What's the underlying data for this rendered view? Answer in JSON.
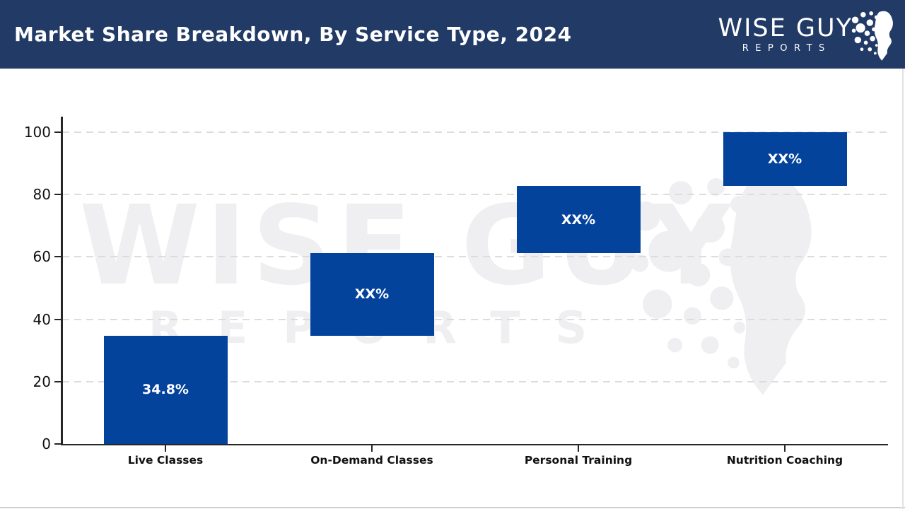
{
  "header": {
    "title": "Market Share Breakdown, By Service Type, 2024",
    "brand_line1": "WISE GUY",
    "brand_line2": "REPORTS"
  },
  "watermark": {
    "line1": "WISE GUY",
    "line2": "REPORTS"
  },
  "chart_data": {
    "type": "bar",
    "subtype": "waterfall",
    "title": "Market Share Breakdown, By Service Type, 2024",
    "categories": [
      "Live Classes",
      "On-Demand Classes",
      "Personal Training",
      "Nutrition Coaching"
    ],
    "segments": [
      {
        "category": "Live Classes",
        "start": 0,
        "end": 34.8,
        "label": "34.8%"
      },
      {
        "category": "On-Demand Classes",
        "start": 34.8,
        "end": 61.2,
        "label": "XX%"
      },
      {
        "category": "Personal Training",
        "start": 61.2,
        "end": 82.7,
        "label": "XX%"
      },
      {
        "category": "Nutrition Coaching",
        "start": 82.7,
        "end": 100,
        "label": "XX%"
      }
    ],
    "values_increment": [
      34.8,
      26.4,
      21.5,
      17.3
    ],
    "labels": [
      "34.8%",
      "XX%",
      "XX%",
      "XX%"
    ],
    "xlabel": "",
    "ylabel": "",
    "yticks": [
      0,
      20,
      40,
      60,
      80,
      100
    ],
    "ylim": [
      0,
      105
    ],
    "grid": "dashed-horizontal",
    "legend": "none",
    "bar_color": "#04439C",
    "bar_label_color": "#ffffff"
  },
  "colors": {
    "header_bg": "#213A66",
    "bar": "#04439C",
    "background": "#ffffff",
    "grid": "#DCDCDC",
    "axis": "#262626",
    "watermark": "#EFEFF1",
    "title_text": "#ffffff"
  }
}
